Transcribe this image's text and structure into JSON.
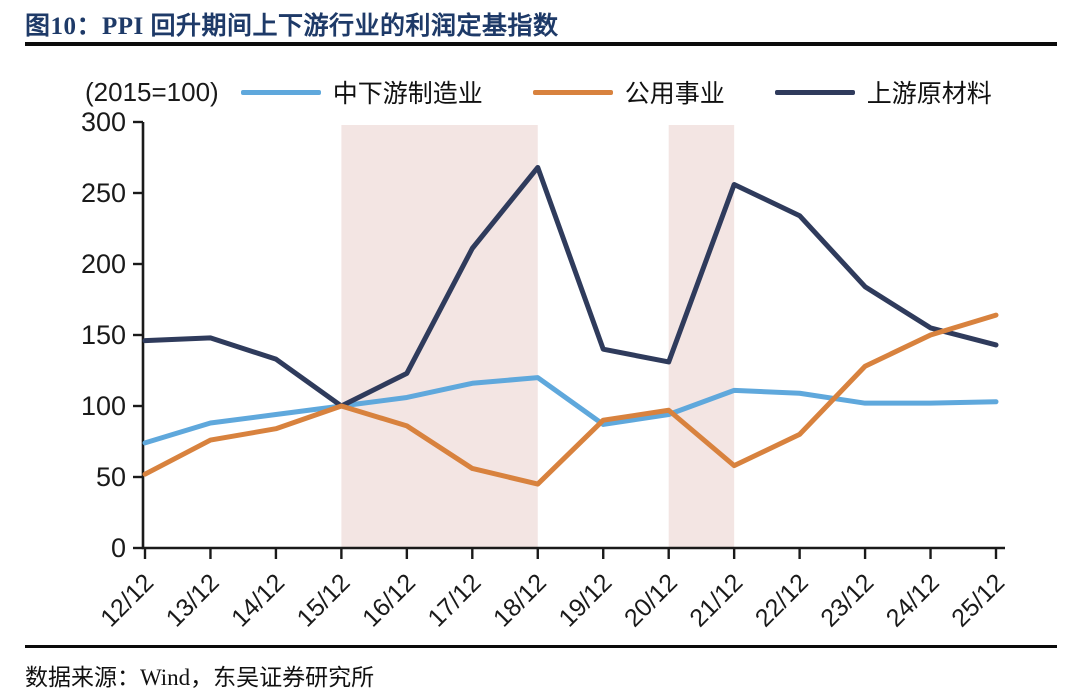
{
  "header": {
    "title": "图10：PPI 回升期间上下游行业的利润定基指数"
  },
  "footer": {
    "source": "数据来源：Wind，东吴证券研究所"
  },
  "chart_data": {
    "type": "line",
    "title": "PPI 回升期间上下游行业的利润定基指数",
    "unit_label": "(2015=100)",
    "xlabel": "",
    "ylabel": "",
    "categories": [
      "12/12",
      "13/12",
      "14/12",
      "15/12",
      "16/12",
      "17/12",
      "18/12",
      "19/12",
      "20/12",
      "21/12",
      "22/12",
      "23/12",
      "24/12",
      "25/12"
    ],
    "series": [
      {
        "key": "mid-downstream-manufacturing",
        "name": "中下游制造业",
        "color": "#5FA8DC",
        "values": [
          74,
          88,
          94,
          100,
          106,
          116,
          120,
          87,
          94,
          111,
          109,
          102,
          102,
          103
        ]
      },
      {
        "key": "utilities",
        "name": "公用事业",
        "color": "#D8823E",
        "values": [
          52,
          76,
          84,
          100,
          86,
          56,
          45,
          90,
          97,
          58,
          80,
          128,
          150,
          164
        ]
      },
      {
        "key": "upstream-raw-materials",
        "name": "上游原材料",
        "color": "#2F3B5C",
        "values": [
          146,
          148,
          133,
          100,
          123,
          211,
          268,
          140,
          131,
          256,
          234,
          184,
          155,
          143
        ]
      }
    ],
    "draw_order": [
      "mid-downstream-manufacturing",
      "upstream-raw-materials",
      "utilities"
    ],
    "ylim": [
      0,
      300
    ],
    "yticks": [
      0,
      50,
      100,
      150,
      200,
      250,
      300
    ],
    "shaded_bands": [
      {
        "from": "15/12",
        "to": "18/12"
      },
      {
        "from": "20/12",
        "to": "21/12"
      }
    ],
    "band_color": "#F3E5E3",
    "axis_color": "#1A1A1A",
    "grid": false,
    "legend_position": "top"
  }
}
